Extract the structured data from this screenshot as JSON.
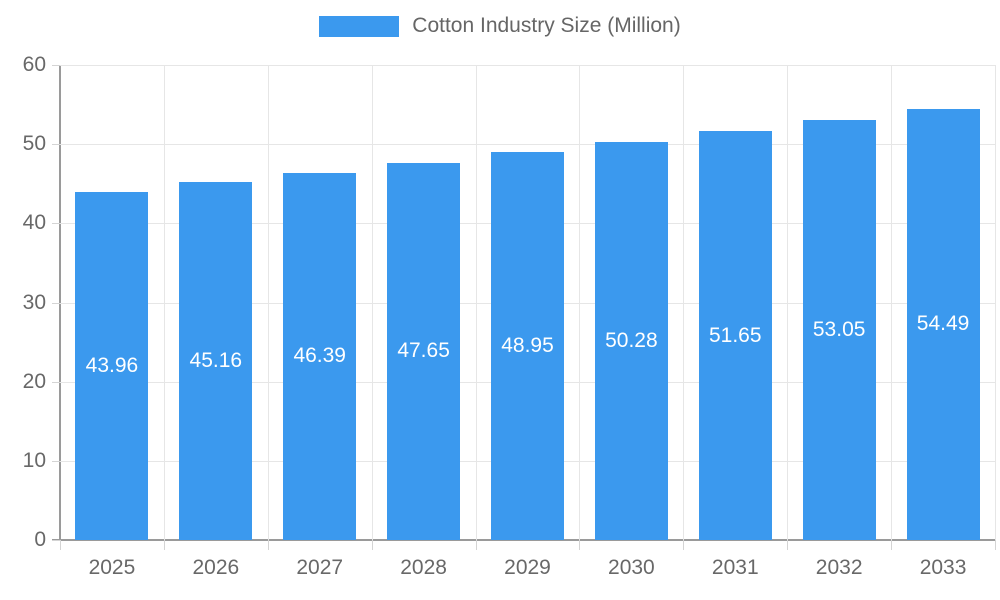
{
  "chart_data": {
    "type": "bar",
    "title": "Cotton Industry Size (Million)",
    "categories": [
      "2025",
      "2026",
      "2027",
      "2028",
      "2029",
      "2030",
      "2031",
      "2032",
      "2033"
    ],
    "values": [
      43.96,
      45.16,
      46.39,
      47.65,
      48.95,
      50.28,
      51.65,
      53.05,
      54.49
    ],
    "value_labels": [
      "43.96",
      "45.16",
      "46.39",
      "47.65",
      "48.95",
      "50.28",
      "51.65",
      "53.05",
      "54.49"
    ],
    "xlabel": "",
    "ylabel": "",
    "ylim": [
      0,
      60
    ],
    "yticks": [
      0,
      10,
      20,
      30,
      40,
      50,
      60
    ],
    "grid": "on",
    "legend_position": "top-center",
    "bar_color": "#3b99ee",
    "grid_color": "#e6e6e6",
    "axis_color": "#9a9a9a",
    "tick_label_color": "#686868",
    "legend_text_color": "#666666",
    "value_label_color": "#ffffff"
  }
}
